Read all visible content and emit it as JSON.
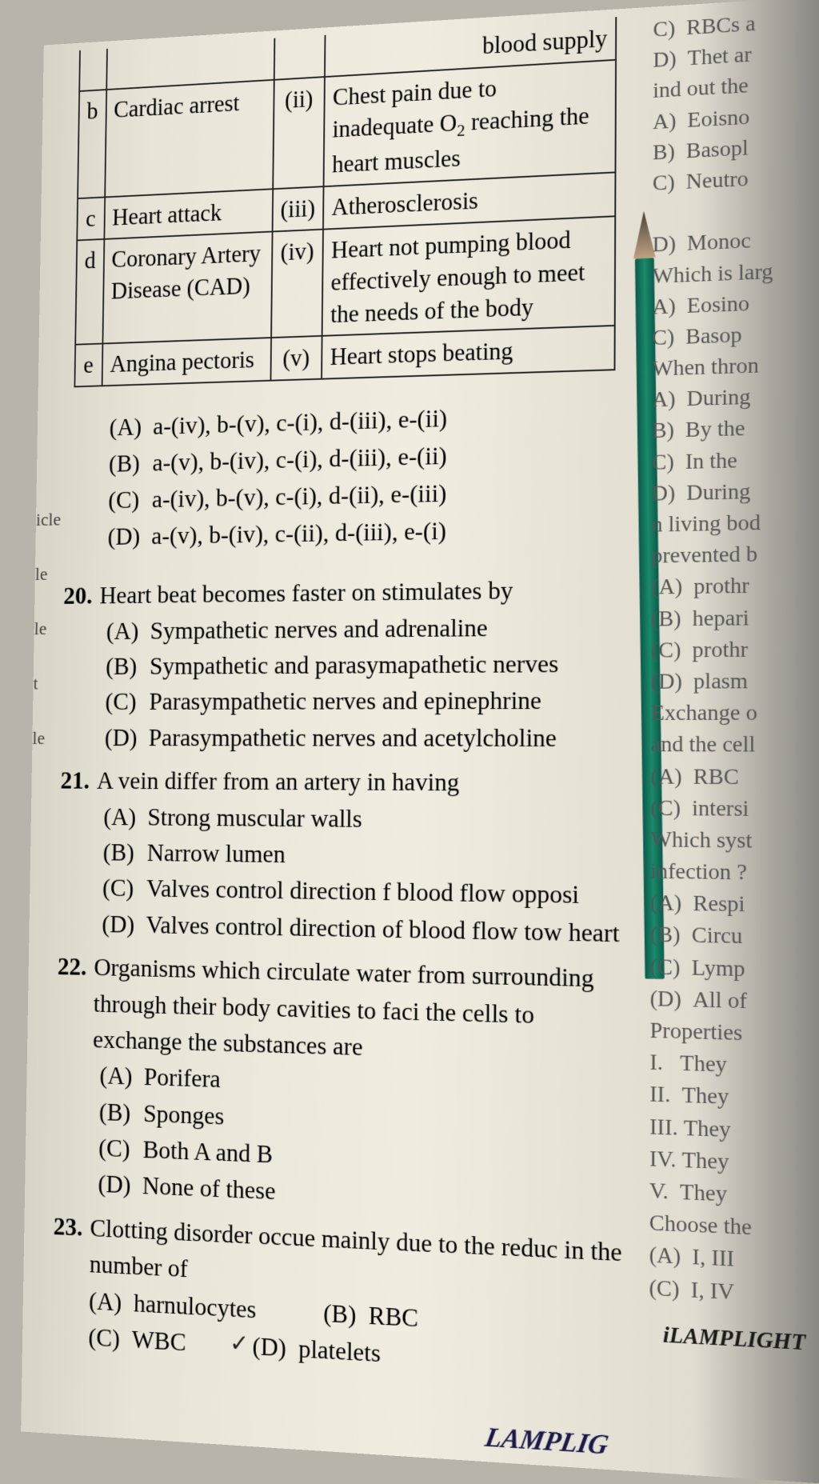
{
  "table": {
    "top_partial": {
      "def_tail": "blood supply"
    },
    "rows": [
      {
        "l": "b",
        "term": "Cardiac arrest",
        "n": "(ii)",
        "def": "Chest pain due to inadequate O₂ reaching the heart muscles"
      },
      {
        "l": "c",
        "term": "Heart attack",
        "n": "(iii)",
        "def": "Atherosclerosis"
      },
      {
        "l": "d",
        "term": "Coronary Artery Disease (CAD)",
        "n": "(iv)",
        "def": "Heart not pumping blood effectively enough to meet the needs of the body"
      },
      {
        "l": "e",
        "term": "Angina pectoris",
        "n": "(v)",
        "def": "Heart stops beating"
      }
    ]
  },
  "match_opts": {
    "A": "a-(iv), b-(v), c-(i), d-(iii), e-(ii)",
    "B": "a-(v), b-(iv), c-(i), d-(iii), e-(ii)",
    "C": "a-(iv), b-(v), c-(i), d-(ii), e-(iii)",
    "D": "a-(v), b-(iv), c-(ii), d-(iii), e-(i)"
  },
  "q20": {
    "num": "20.",
    "text": "Heart beat becomes faster on stimulates by",
    "A": "Sympathetic nerves and adrenaline",
    "B": "Sympathetic and parasymapathetic nerves",
    "C": "Parasympathetic nerves and epinephrine",
    "D": "Parasympathetic nerves and acetylcholine"
  },
  "q21": {
    "num": "21.",
    "text": "A vein differ from an artery in having",
    "A": "Strong muscular walls",
    "B": "Narrow lumen",
    "C": "Valves control direction f blood flow opposi",
    "D": "Valves control direction of blood flow tow heart"
  },
  "q22": {
    "num": "22.",
    "text": "Organisms which circulate water from surrounding through their body cavities to faci the cells to exchange the substances are",
    "A": "Porifera",
    "B": "Sponges",
    "C": "Both A and B",
    "D": "None of these"
  },
  "q23": {
    "num": "23.",
    "text": "Clotting disorder occue mainly due to the reduc in the number of",
    "A": "harnulocytes",
    "B": "RBC",
    "C": "WBC",
    "D": "platelets"
  },
  "right_fragments": [
    "C)  RBCs a",
    "D)  Thet ar",
    "ind out the",
    "A)  Eoisno",
    "B)  Basopl",
    "C)  Neutro",
    " ",
    "D)  Monoc",
    "Which is larg",
    "A)  Eosino",
    "C)  Basop",
    "When thron",
    "A)  During",
    "B)  By the",
    "C)  In the",
    "D)  During",
    "n living bod",
    "prevented b",
    "(A)  prothr",
    "(B)  hepari",
    "(C)  prothr",
    "(D)  plasm",
    "Exchange o",
    "and the cell",
    "(A)  RBC",
    "(C)  intersi",
    "Which syst",
    "infection ?",
    "(A)  Respi",
    "(B)  Circu",
    "(C)  Lymp",
    "(D)  All of",
    "Properties",
    "I.   They",
    "II.  They",
    "III. They",
    "IV. They",
    "V.  They",
    "Choose the",
    "(A)  I, III",
    "(C)  I, IV"
  ],
  "logo_side": "iLAMPLIGHT",
  "logo_footer": "LAMPLIG",
  "left_margin": [
    "icle",
    "le",
    "le",
    "t",
    "le"
  ],
  "tick": "✓"
}
